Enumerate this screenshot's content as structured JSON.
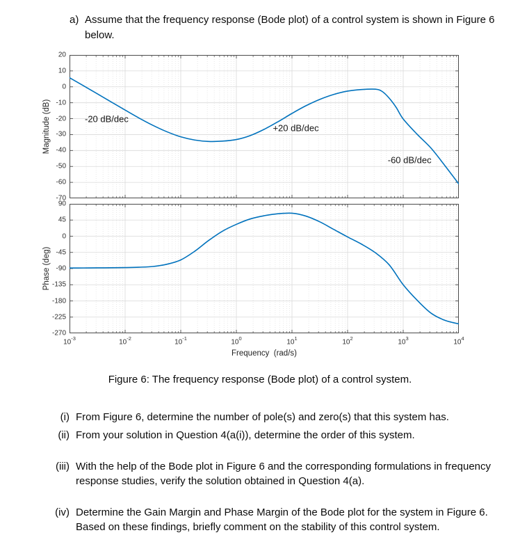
{
  "page": {
    "intro_label": "a)",
    "intro_text": "Assume that the frequency response (Bode plot) of a control system is shown in Figure 6 below.",
    "caption": "Figure 6: The frequency response (Bode plot) of a control system.",
    "questions": [
      {
        "label": "(i)",
        "text": "From Figure 6, determine the number of pole(s) and zero(s) that this system has."
      },
      {
        "label": "(ii)",
        "text": "From your solution in Question 4(a(i)), determine the order of this system."
      },
      {
        "label": "(iii)",
        "text": "With the help of the Bode plot in Figure 6 and the corresponding formulations in frequency response studies, verify the solution obtained in Question 4(a)."
      },
      {
        "label": "(iv)",
        "text": "Determine the Gain Margin and Phase Margin of the Bode plot for the system in Figure 6.  Based on these findings, briefly comment on the stability of this control system."
      }
    ]
  },
  "chart_data": [
    {
      "type": "line",
      "id": "bode-magnitude",
      "ylabel": "Magnitude (dB)",
      "ylim": [
        -70,
        20
      ],
      "yticks": [
        20,
        10,
        0,
        -10,
        -20,
        -30,
        -40,
        -50,
        -60,
        -70
      ],
      "x_log_range": [
        -3,
        4
      ],
      "xtick_exponents": [
        -3,
        -2,
        -1,
        0,
        1,
        2,
        3,
        4
      ],
      "show_x_tick_labels": false,
      "grid": true,
      "legend": "none",
      "line_color": "#0072BD",
      "axis_color": "#4a4a4a",
      "grid_major_color": "#d9d9d9",
      "grid_minor_color": "#dedede",
      "annotations": [
        {
          "text": "-20 dB/dec",
          "x_log10": -2.725,
          "y": -20.4
        },
        {
          "text": "+20 dB/dec",
          "x_log10": 0.656,
          "y": -25.7
        },
        {
          "text": "-60 dB/dec",
          "x_log10": 2.722,
          "y": -45.8
        }
      ],
      "points_log10w_vs_db": [
        [
          -3,
          5.7
        ],
        [
          -2.75,
          0.7
        ],
        [
          -2.5,
          -4.4
        ],
        [
          -2.25,
          -9.5
        ],
        [
          -2,
          -14.6
        ],
        [
          -1.75,
          -19.6
        ],
        [
          -1.5,
          -24.2
        ],
        [
          -1.25,
          -28.2
        ],
        [
          -1,
          -31.4
        ],
        [
          -0.75,
          -33.4
        ],
        [
          -0.5,
          -34.3
        ],
        [
          -0.25,
          -34.1
        ],
        [
          0,
          -33.1
        ],
        [
          0.25,
          -30.6
        ],
        [
          0.5,
          -26.7
        ],
        [
          0.75,
          -21.9
        ],
        [
          1,
          -16.7
        ],
        [
          1.25,
          -11.9
        ],
        [
          1.5,
          -7.9
        ],
        [
          1.75,
          -4.8
        ],
        [
          2,
          -2.7
        ],
        [
          2.25,
          -1.7
        ],
        [
          2.5,
          -1.5
        ],
        [
          2.625,
          -3
        ],
        [
          2.75,
          -7.2
        ],
        [
          2.875,
          -13
        ],
        [
          3,
          -20.2
        ],
        [
          3.25,
          -29.8
        ],
        [
          3.5,
          -38.5
        ],
        [
          3.75,
          -49.5
        ],
        [
          4,
          -61
        ]
      ]
    },
    {
      "type": "line",
      "id": "bode-phase",
      "ylabel": "Phase (deg)",
      "xlabel": "Frequency  (rad/s)",
      "ylim": [
        -270,
        90
      ],
      "yticks": [
        90,
        45,
        0,
        -45,
        -90,
        -135,
        -180,
        -225,
        -270
      ],
      "x_log_range": [
        -3,
        4
      ],
      "xtick_exponents": [
        -3,
        -2,
        -1,
        0,
        1,
        2,
        3,
        4
      ],
      "show_x_tick_labels": true,
      "grid": true,
      "legend": "none",
      "line_color": "#0072BD",
      "axis_color": "#4a4a4a",
      "grid_major_color": "#d9d9d9",
      "grid_minor_color": "#dedede",
      "annotations": [],
      "points_log10w_vs_deg": [
        [
          -3,
          -88.5
        ],
        [
          -2.75,
          -88.3
        ],
        [
          -2.5,
          -88
        ],
        [
          -2.25,
          -87.7
        ],
        [
          -2,
          -87.2
        ],
        [
          -1.75,
          -86.2
        ],
        [
          -1.5,
          -84.2
        ],
        [
          -1.25,
          -78
        ],
        [
          -1,
          -66
        ],
        [
          -0.75,
          -42
        ],
        [
          -0.5,
          -12
        ],
        [
          -0.25,
          14
        ],
        [
          0,
          33
        ],
        [
          0.25,
          48
        ],
        [
          0.5,
          57
        ],
        [
          0.75,
          62.5
        ],
        [
          1,
          64
        ],
        [
          1.25,
          56
        ],
        [
          1.5,
          40
        ],
        [
          1.75,
          19
        ],
        [
          2,
          -2
        ],
        [
          2.25,
          -22
        ],
        [
          2.5,
          -46
        ],
        [
          2.75,
          -80
        ],
        [
          3,
          -135
        ],
        [
          3.25,
          -178
        ],
        [
          3.5,
          -214
        ],
        [
          3.75,
          -234
        ],
        [
          4,
          -244
        ]
      ]
    }
  ]
}
